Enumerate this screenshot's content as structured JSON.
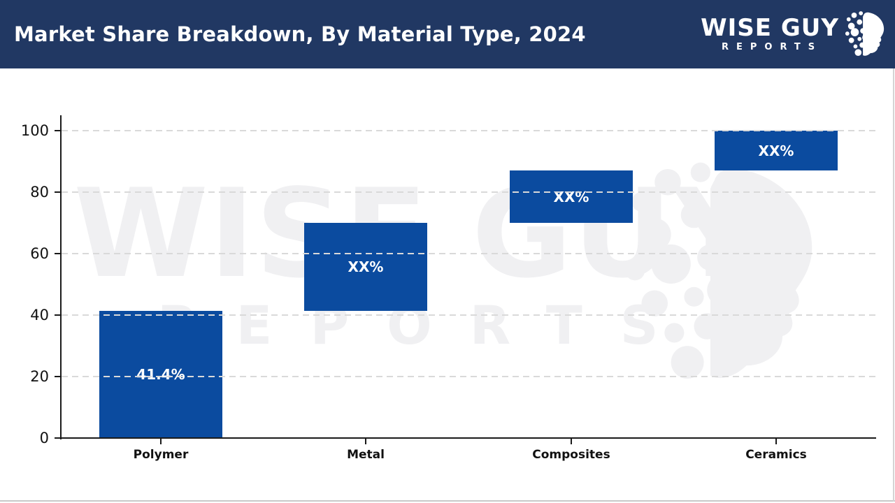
{
  "header": {
    "title": "Market Share Breakdown, By Material Type, 2024",
    "bg_color": "#213863",
    "logo": {
      "wordmark": "WISE GUY",
      "subtext": "REPORTS"
    }
  },
  "watermark": {
    "wordmark": "WISE GUY",
    "subtext": "REPORTS"
  },
  "chart_data": {
    "type": "bar",
    "subtype": "waterfall",
    "title": "Market Share Breakdown, By Material Type, 2024",
    "categories": [
      "Polymer",
      "Metal",
      "Composites",
      "Ceramics"
    ],
    "bars": [
      {
        "category": "Polymer",
        "start": 0,
        "end": 41.4,
        "label": "41.4%"
      },
      {
        "category": "Metal",
        "start": 41.4,
        "end": 70,
        "label": "XX%"
      },
      {
        "category": "Composites",
        "start": 70,
        "end": 87,
        "label": "XX%"
      },
      {
        "category": "Ceramics",
        "start": 87,
        "end": 100,
        "label": "XX%"
      }
    ],
    "xlabel": "",
    "ylabel": "",
    "ylim": [
      0,
      105
    ],
    "yticks": [
      0,
      20,
      40,
      60,
      80,
      100
    ],
    "grid": "horizontal-dashed",
    "legend": "none",
    "bar_color": "#0b4b9f",
    "bar_label_color": "#ffffff",
    "grid_color": "#d9d9d9",
    "axis_color": "#1a1a1a"
  }
}
